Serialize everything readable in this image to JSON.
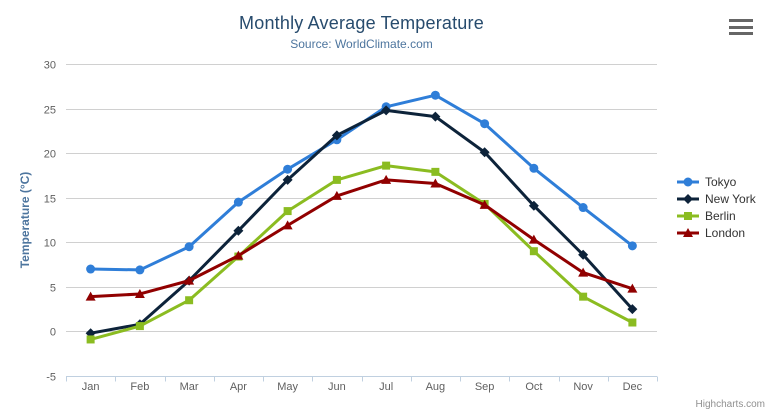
{
  "header": {
    "title": "Monthly Average Temperature",
    "subtitle": "Source: WorldClimate.com"
  },
  "credits_label": "Highcharts.com",
  "icons": {
    "context_menu": "hamburger-icon"
  },
  "colors": {
    "title": "#274b6d",
    "subtitle": "#4d759e",
    "axis_title": "#4d759e",
    "axis_labels": "#606060",
    "gridline": "#d0d0d0",
    "axis_line": "#c0d0e0",
    "legend_text": "#333333",
    "menu_icon": "#666666",
    "credits": "#909090"
  },
  "chart_data": {
    "type": "line",
    "title": "Monthly Average Temperature",
    "subtitle": "Source: WorldClimate.com",
    "xlabel": "",
    "ylabel": "Temperature (°C)",
    "ylim": [
      -5,
      30
    ],
    "ytick_step": 5,
    "grid": true,
    "legend_position": "right",
    "categories": [
      "Jan",
      "Feb",
      "Mar",
      "Apr",
      "May",
      "Jun",
      "Jul",
      "Aug",
      "Sep",
      "Oct",
      "Nov",
      "Dec"
    ],
    "series": [
      {
        "name": "Tokyo",
        "color": "#2f7ed8",
        "marker": "circle",
        "values": [
          7.0,
          6.9,
          9.5,
          14.5,
          18.2,
          21.5,
          25.2,
          26.5,
          23.3,
          18.3,
          13.9,
          9.6
        ]
      },
      {
        "name": "New York",
        "color": "#0d233a",
        "marker": "diamond",
        "values": [
          -0.2,
          0.8,
          5.7,
          11.3,
          17.0,
          22.0,
          24.8,
          24.1,
          20.1,
          14.1,
          8.6,
          2.5
        ]
      },
      {
        "name": "Berlin",
        "color": "#8bbc21",
        "marker": "square",
        "values": [
          -0.9,
          0.6,
          3.5,
          8.4,
          13.5,
          17.0,
          18.6,
          17.9,
          14.3,
          9.0,
          3.9,
          1.0
        ]
      },
      {
        "name": "London",
        "color": "#910000",
        "marker": "triangle",
        "values": [
          3.9,
          4.2,
          5.7,
          8.5,
          11.9,
          15.2,
          17.0,
          16.6,
          14.2,
          10.3,
          6.6,
          4.8
        ]
      }
    ]
  }
}
